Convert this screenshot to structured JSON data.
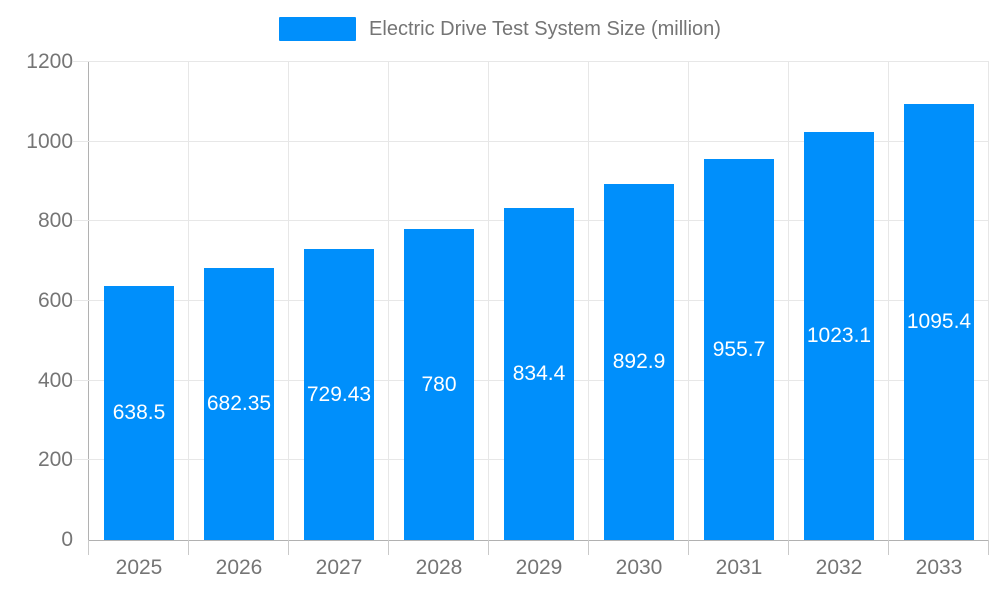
{
  "chart_data": {
    "type": "bar",
    "title": "Electric Drive Test System Size (million)",
    "categories": [
      "2025",
      "2026",
      "2027",
      "2028",
      "2029",
      "2030",
      "2031",
      "2032",
      "2033"
    ],
    "values": [
      638.5,
      682.35,
      729.43,
      780,
      834.4,
      892.9,
      955.7,
      1023.1,
      1095.4
    ],
    "value_labels": [
      "638.5",
      "682.35",
      "729.43",
      "780",
      "834.4",
      "892.9",
      "955.7",
      "1023.1",
      "1095.4"
    ],
    "xlabel": "",
    "ylabel": "",
    "ylim": [
      0,
      1200
    ],
    "yticks": [
      0,
      200,
      400,
      600,
      800,
      1000,
      1200
    ],
    "grid": true,
    "legend_position": "top",
    "colors": {
      "bar": "#008FFB",
      "axis_line": "#b1b1b1",
      "gridline": "#e7e7e7",
      "tick": "#c9c9c9",
      "axis_label": "#757575",
      "data_label": "#ffffff",
      "background": "#ffffff"
    }
  }
}
